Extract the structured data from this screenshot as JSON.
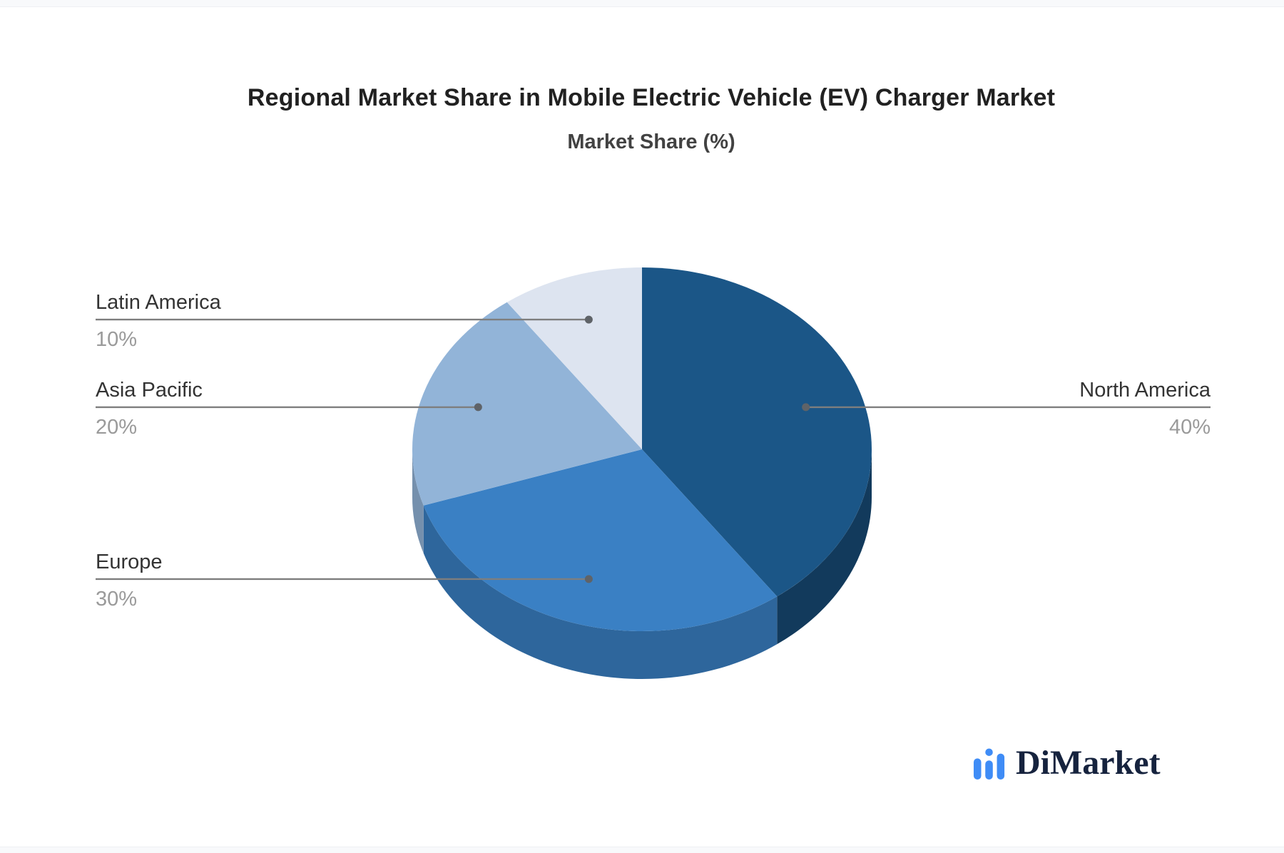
{
  "page": {
    "title": "Regional Market Share in Mobile Electric Vehicle (EV) Charger Market",
    "subtitle": "Market Share (%)"
  },
  "chart_data": {
    "type": "pie",
    "style": "3d",
    "title": "Regional Market Share in Mobile Electric Vehicle (EV) Charger Market",
    "subtitle": "Market Share (%)",
    "unit": "%",
    "direction": "clockwise",
    "start_angle_deg": 0,
    "legend_position": "none",
    "slices": [
      {
        "label": "North America",
        "value": 40,
        "pct_label": "40%",
        "color": "#1B5687",
        "side_color": "#123A5C",
        "label_side": "right"
      },
      {
        "label": "Europe",
        "value": 30,
        "pct_label": "30%",
        "color": "#3A80C4",
        "side_color": "#2E669C",
        "label_side": "left"
      },
      {
        "label": "Asia Pacific",
        "value": 20,
        "pct_label": "20%",
        "color": "#92B4D8",
        "side_color": "#7590AD",
        "label_side": "left"
      },
      {
        "label": "Latin America",
        "value": 10,
        "pct_label": "10%",
        "color": "#DDE4F0",
        "side_color": "#BCC6D6",
        "label_side": "left"
      }
    ],
    "label_text_color": "#333333",
    "pct_text_color": "#9a9a9a",
    "connector_color": "#7e7e7e"
  },
  "brand": {
    "name": "DiMarket"
  }
}
